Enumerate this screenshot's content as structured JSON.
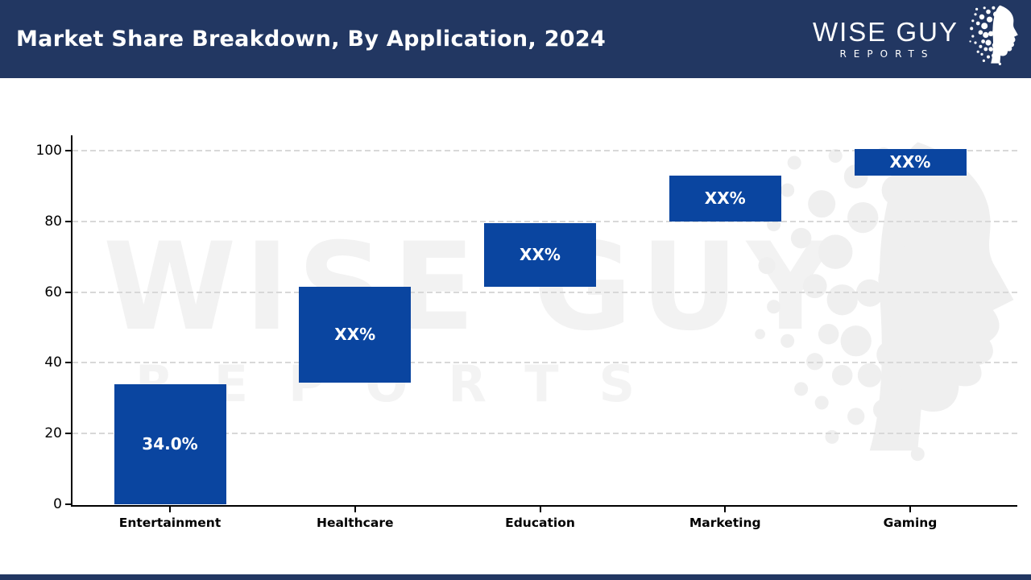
{
  "header": {
    "title": "Market Share Breakdown, By Application, 2024",
    "logo": {
      "line1": "WISE GUY",
      "line2": "REPORTS"
    }
  },
  "watermark": {
    "line1": "WISE GUY",
    "line2": "REPORTS"
  },
  "chart_data": {
    "type": "bar",
    "subtype": "waterfall",
    "title": "Market Share Breakdown, By Application, 2024",
    "categories": [
      "Entertainment",
      "Healthcare",
      "Education",
      "Marketing",
      "Gaming"
    ],
    "bars": [
      {
        "category": "Entertainment",
        "from": 0,
        "to": 34,
        "label": "34.0%"
      },
      {
        "category": "Healthcare",
        "from": 34.5,
        "to": 61.5,
        "label": "XX%"
      },
      {
        "category": "Education",
        "from": 61.5,
        "to": 79.5,
        "label": "XX%"
      },
      {
        "category": "Marketing",
        "from": 80,
        "to": 93,
        "label": "XX%"
      },
      {
        "category": "Gaming",
        "from": 93,
        "to": 100.5,
        "label": "XX%"
      }
    ],
    "yticks": [
      0,
      20,
      40,
      60,
      80,
      100
    ],
    "ylim": [
      0,
      104
    ],
    "grid": "horizontal-dashed",
    "legend": "none",
    "bar_color": "#0a45a0"
  },
  "colors": {
    "header_navy": "#223762",
    "bar_blue": "#0a45a0",
    "gridline": "#d8d8d8",
    "axis": "#000000",
    "watermark_gray": "#f2f2f2"
  }
}
